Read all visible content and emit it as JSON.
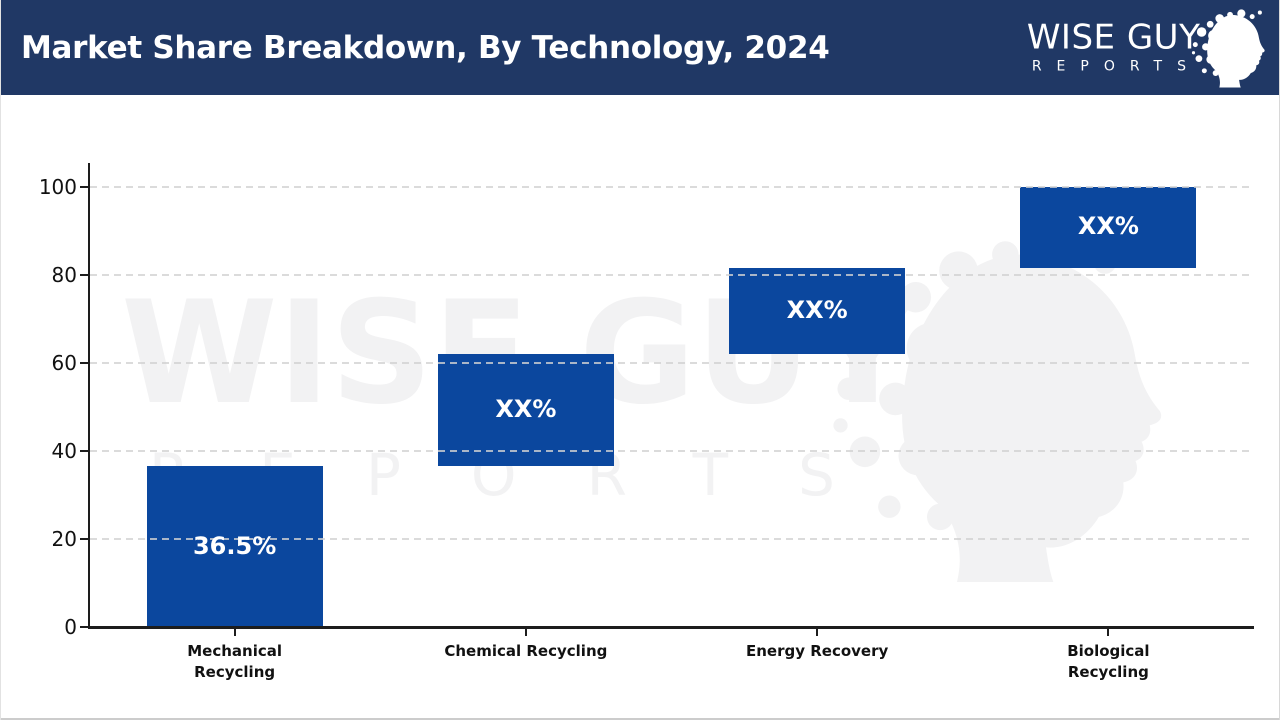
{
  "header": {
    "title": "Market Share Breakdown, By Technology, 2024",
    "logo": {
      "name": "WISE GUY",
      "tagline": "REPORTS"
    }
  },
  "watermark": {
    "name": "WISE GUY",
    "tagline": "REPORTS"
  },
  "chart_data": {
    "type": "bar",
    "subtype": "waterfall",
    "title": "Market Share Breakdown, By Technology, 2024",
    "categories": [
      "Mechanical Recycling",
      "Chemical Recycling",
      "Energy Recovery",
      "Biological Recycling"
    ],
    "category_lines": [
      [
        "Mechanical",
        "Recycling"
      ],
      [
        "Chemical Recycling"
      ],
      [
        "Energy Recovery"
      ],
      [
        "Biological",
        "Recycling"
      ]
    ],
    "segments": [
      {
        "category": "Mechanical Recycling",
        "start": 0,
        "end": 36.5,
        "value_label": "36.5%"
      },
      {
        "category": "Chemical Recycling",
        "start": 36.5,
        "end": 62,
        "value_label": "XX%"
      },
      {
        "category": "Energy Recovery",
        "start": 62,
        "end": 81.5,
        "value_label": "XX%"
      },
      {
        "category": "Biological Recycling",
        "start": 81.5,
        "end": 100,
        "value_label": "XX%"
      }
    ],
    "y_ticks": [
      0,
      20,
      40,
      60,
      80,
      100
    ],
    "ylim": [
      0,
      105
    ],
    "xlabel": "",
    "ylabel": "",
    "grid": "horizontal-dashed",
    "legend": "none",
    "bar_color": "#0b479e",
    "value_label_color": "#ffffff"
  },
  "colors": {
    "header_bg": "#203865",
    "axis": "#1d1d1d",
    "gridline": "#dcdcdc",
    "watermark": "#f2f2f3",
    "tick_label": "#111111"
  }
}
